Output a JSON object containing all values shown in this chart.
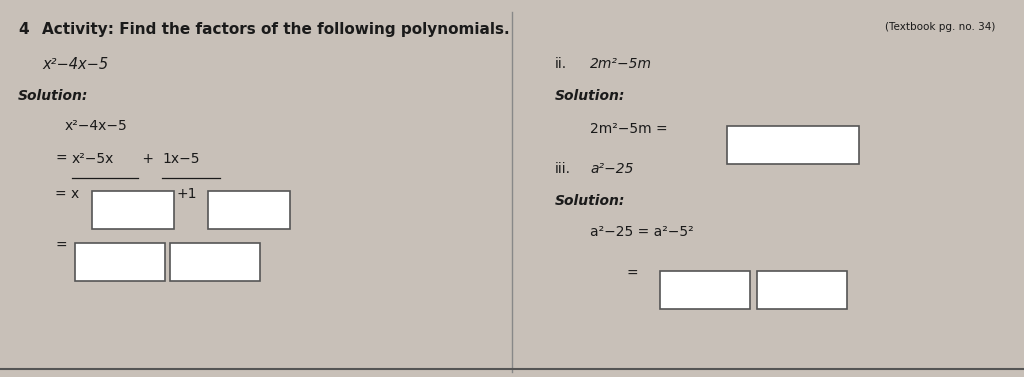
{
  "bg_color": "#c8c0b8",
  "paper_color": "#d4cdc6",
  "title_prefix": "4",
  "title_main": "Activity: Find the factors of the following polynomials.",
  "problem_i": "x²−4x−5",
  "solution_label": "Solution:",
  "sol_line1": "x²−4x−5",
  "problem_ii_label": "ii.",
  "problem_ii": "2m²−5m",
  "solution_label2": "Solution:",
  "problem_iii_label": "iii.",
  "problem_iii": "a²−25",
  "solution_label3": "Solution:",
  "sol_iii_line1": "a²−25 = a²−5²",
  "textbook_ref": "(Textbook pg. no. 34)",
  "text_color": "#1a1a1a",
  "box_color": "#ffffff",
  "box_edge_color": "#555555"
}
